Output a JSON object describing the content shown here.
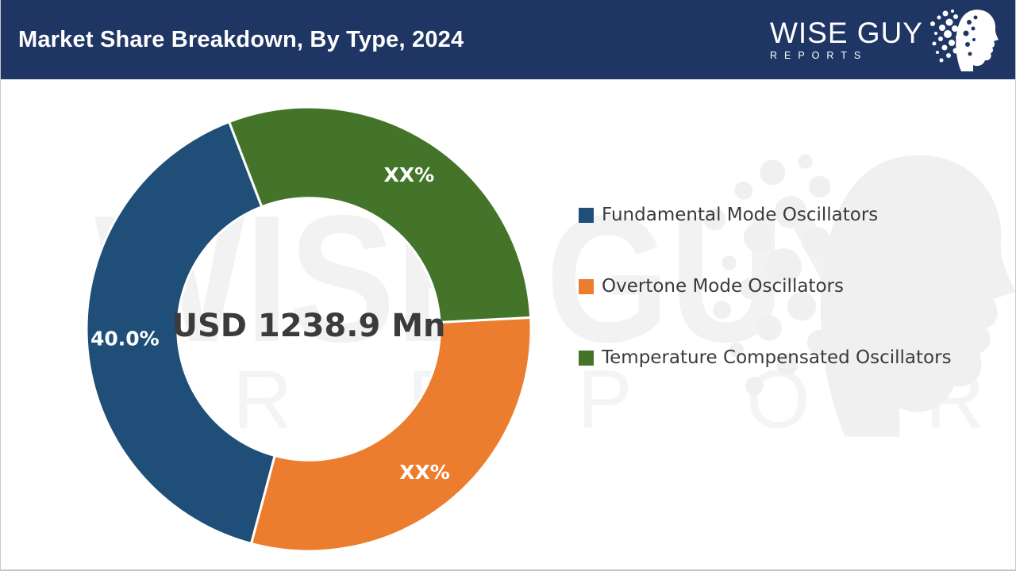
{
  "header": {
    "title": "Market Share Breakdown, By Type, 2024",
    "logo": {
      "wordmark": "WISE GUY",
      "subtext": "REPORTS"
    }
  },
  "watermark": {
    "wordmark": "WISE GUY",
    "subtext": "R E P O R T S"
  },
  "chart_data": {
    "type": "pie",
    "subtype": "donut",
    "title": "Market Share Breakdown, By Type, 2024",
    "center_text": "USD 1238.9 Mn",
    "start_angle_deg": 111,
    "direction": "counterclockwise",
    "inner_radius_ratio": 0.59,
    "legend_position": "right",
    "segments": [
      {
        "label": "Fundamental Mode Oscillators",
        "value": 40.0,
        "display_label": "40.0%",
        "color": "#1F4E78"
      },
      {
        "label": "Overtone Mode Oscillators",
        "value": 30.0,
        "display_label": "XX%",
        "color": "#EC7D2F"
      },
      {
        "label": "Temperature Compensated Oscillators",
        "value": 30.0,
        "display_label": "XX%",
        "color": "#437429"
      }
    ],
    "colors": {
      "header_bg": "#1F3664",
      "center_text": "#3B3B3B",
      "legend_text": "#3A3A3A",
      "watermark": "#F2F2F2",
      "segment_gap": "#FFFFFF"
    }
  }
}
